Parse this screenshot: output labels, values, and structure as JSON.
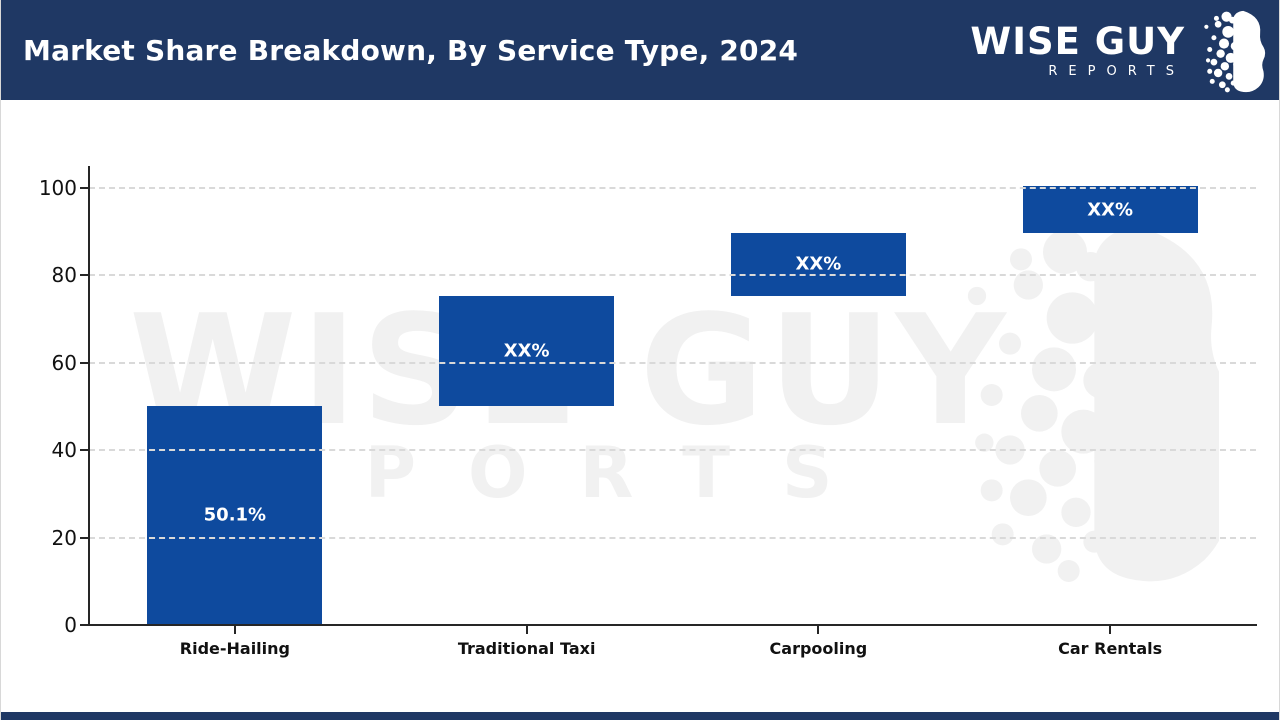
{
  "header": {
    "title": "Market Share Breakdown, By Service Type, 2024",
    "logo": {
      "line1": "WISE GUY",
      "line2": "REPORTS"
    }
  },
  "watermark": {
    "line1": "WISE GUY",
    "line2": "REPORTS"
  },
  "colors": {
    "header_bg": "#1f3864",
    "bar_blue": "#0e4a9e",
    "gridline": "#d9d9d9",
    "axis": "#262626",
    "watermark": "#f1f1f1",
    "value_label": "#ffffff"
  },
  "chart_data": {
    "type": "bar",
    "subtype": "waterfall",
    "title": "Market Share Breakdown, By Service Type, 2024",
    "categories": [
      "Ride-Hailing",
      "Traditional Taxi",
      "Carpooling",
      "Car Rentals"
    ],
    "segments": [
      {
        "category": "Ride-Hailing",
        "start": 0,
        "end": 50.1,
        "label": "50.1%"
      },
      {
        "category": "Traditional Taxi",
        "start": 50.1,
        "end": 75.2,
        "label": "XX%"
      },
      {
        "category": "Carpooling",
        "start": 75.2,
        "end": 89.7,
        "label": "XX%"
      },
      {
        "category": "Car Rentals",
        "start": 89.7,
        "end": 100.3,
        "label": "XX%"
      }
    ],
    "yticks": [
      0,
      20,
      40,
      60,
      80,
      100
    ],
    "ylim": [
      0,
      104.5
    ],
    "xlabel": "",
    "ylabel": "",
    "grid": "dashed-horizontal",
    "legend": "none"
  }
}
